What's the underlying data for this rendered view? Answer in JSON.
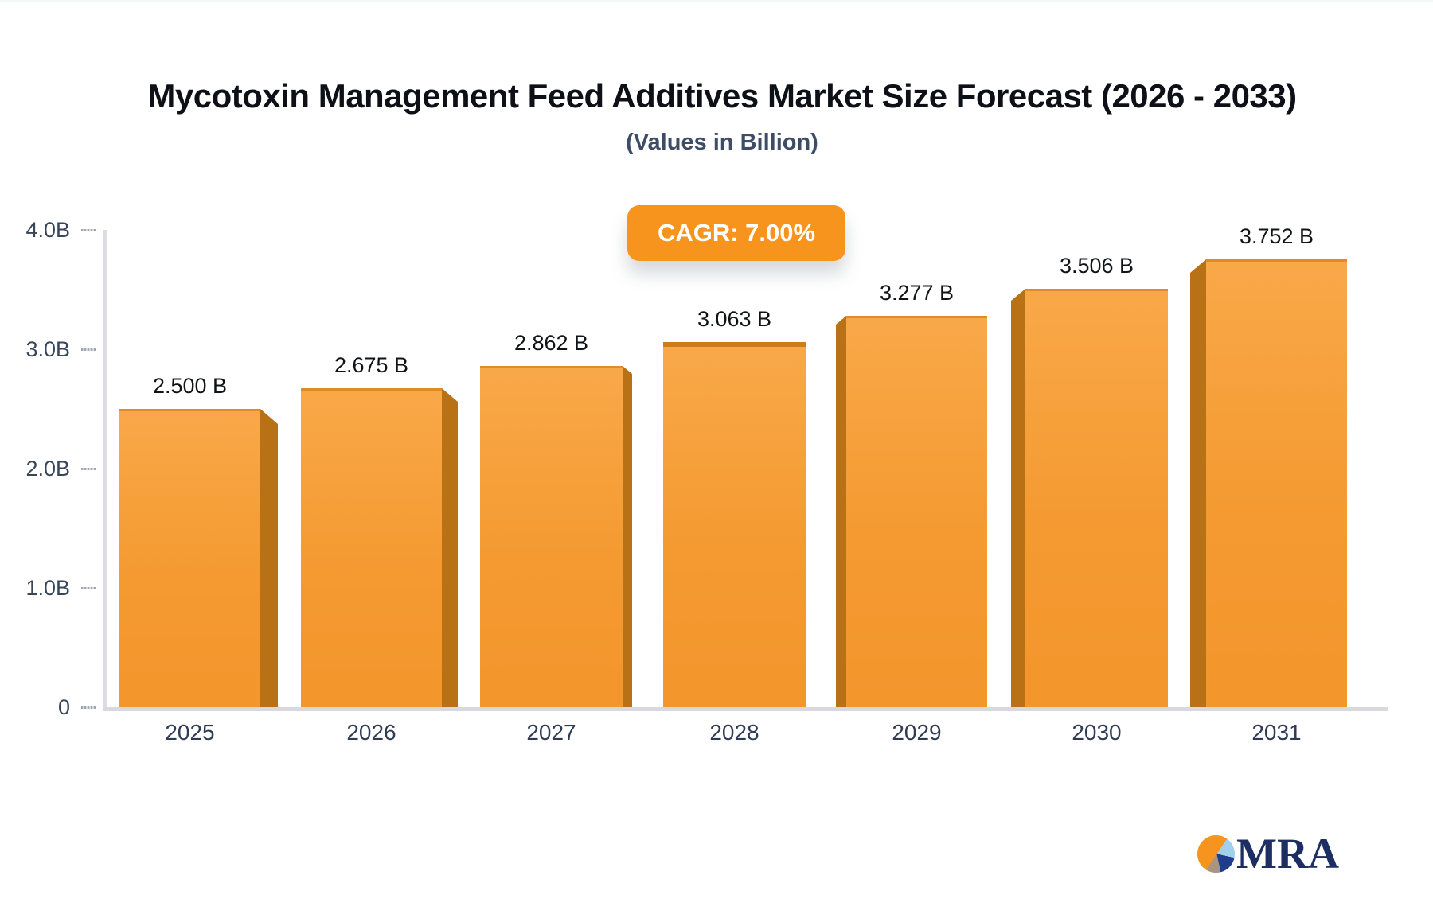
{
  "header": {
    "title": "Mycotoxin Management Feed Additives Market Size Forecast (2026 - 2033)",
    "subtitle": "(Values in Billion)",
    "cagr_badge": "CAGR: 7.00%"
  },
  "chart_data": {
    "type": "bar",
    "title": "Mycotoxin Management Feed Additives Market Size Forecast (2026 - 2033)",
    "subtitle": "(Values in Billion)",
    "cagr": "7.00%",
    "categories": [
      "2025",
      "2026",
      "2027",
      "2028",
      "2029",
      "2030",
      "2031"
    ],
    "values": [
      2.5,
      2.675,
      2.862,
      3.063,
      3.277,
      3.506,
      3.752
    ],
    "value_labels": [
      "2.500 B",
      "2.675 B",
      "2.862 B",
      "3.063 B",
      "3.277 B",
      "3.506 B",
      "3.752 B"
    ],
    "xlabel": "",
    "ylabel": "",
    "ylim": [
      0,
      4
    ],
    "y_tick_values": [
      0,
      1,
      2,
      3,
      4
    ],
    "y_tick_labels": [
      "0",
      "1.0B",
      "2.0B",
      "3.0B",
      "4.0B"
    ],
    "grid": false,
    "legend": false,
    "bar_color": "#F59A31",
    "bar_side_color": "#B97116",
    "accent_color": "#F7941E"
  },
  "footer": {
    "logo_text": "MRA"
  }
}
